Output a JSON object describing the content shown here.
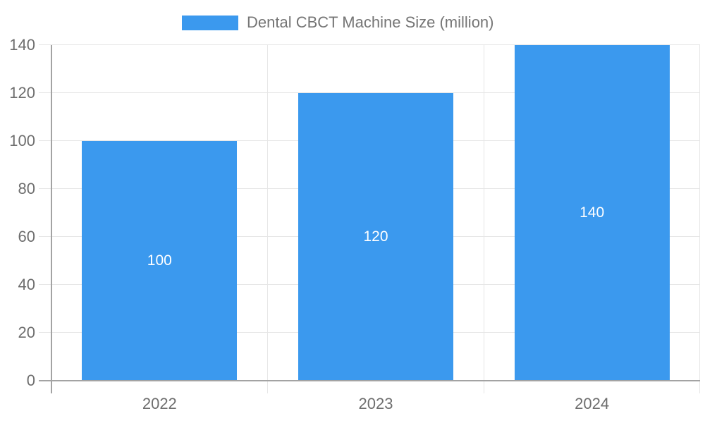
{
  "legend": {
    "label": "Dental CBCT Machine Size (million)"
  },
  "chart_data": {
    "type": "bar",
    "title": "Dental CBCT Machine Size (million)",
    "categories": [
      "2022",
      "2023",
      "2024"
    ],
    "values": [
      100,
      120,
      140
    ],
    "data_labels": [
      "100",
      "120",
      "140"
    ],
    "xlabel": "",
    "ylabel": "",
    "ylim": [
      0,
      140
    ],
    "ytick_step": 20,
    "ytick_labels": [
      "0",
      "20",
      "40",
      "60",
      "80",
      "100",
      "120",
      "140"
    ],
    "grid": true,
    "legend_position": "top",
    "colors": {
      "bar": "#3B99EE",
      "gridline": "#E6E6E6",
      "axis": "#A3A3A3",
      "axis_text": "#6E6E6E",
      "legend_text": "#757575",
      "data_label": "#FFFFFF",
      "background": "#FFFFFF"
    }
  }
}
